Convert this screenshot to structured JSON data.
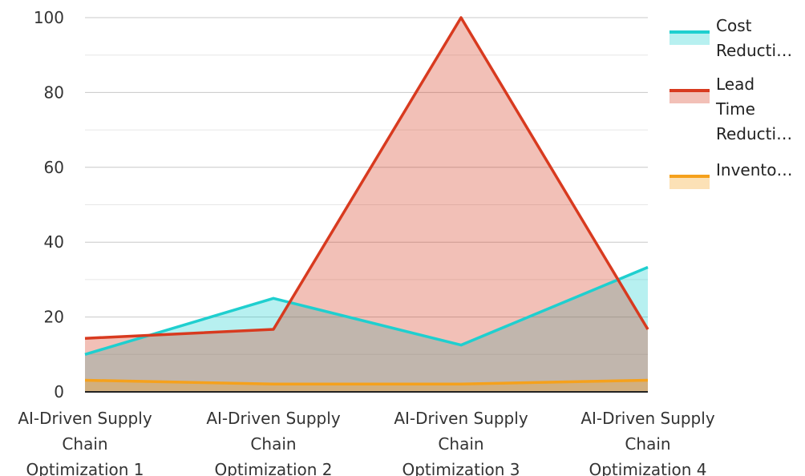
{
  "chart_data": {
    "type": "area",
    "categories": [
      "AI-Driven Supply Chain Optimization 1",
      "AI-Driven Supply Chain Optimization 2",
      "AI-Driven Supply Chain Optimization 3",
      "AI-Driven Supply Chain Optimization 4"
    ],
    "category_label_lines": [
      [
        "AI-Driven Supply",
        "Chain",
        "Optimization 1"
      ],
      [
        "AI-Driven Supply",
        "Chain",
        "Optimization 2"
      ],
      [
        "AI-Driven Supply",
        "Chain",
        "Optimization 3"
      ],
      [
        "AI-Driven Supply",
        "Chain",
        "Optimization 4"
      ]
    ],
    "series": [
      {
        "name": "Cost Reducti…",
        "legend_lines": [
          "Cost",
          "Reducti…"
        ],
        "values": [
          10,
          25,
          12.5,
          33.3
        ],
        "color": "#1fcfcf",
        "fill": "rgba(31,207,207,0.32)"
      },
      {
        "name": "Lead Time Reducti…",
        "legend_lines": [
          "Lead",
          "Time",
          "Reducti…"
        ],
        "values": [
          14.3,
          16.7,
          100,
          16.7
        ],
        "color": "#d83a1f",
        "fill": "rgba(216,58,31,0.32)"
      },
      {
        "name": "Invento…",
        "legend_lines": [
          "Invento…"
        ],
        "values": [
          3.1,
          2.1,
          2.1,
          3.1
        ],
        "color": "#f5a11c",
        "fill": "rgba(245,161,28,0.32)"
      }
    ],
    "y_ticks": [
      "0",
      "20",
      "40",
      "60",
      "80",
      "100"
    ],
    "ylim": [
      0,
      100
    ],
    "grid": true,
    "legend_position": "right",
    "title": "",
    "xlabel": "",
    "ylabel": ""
  }
}
